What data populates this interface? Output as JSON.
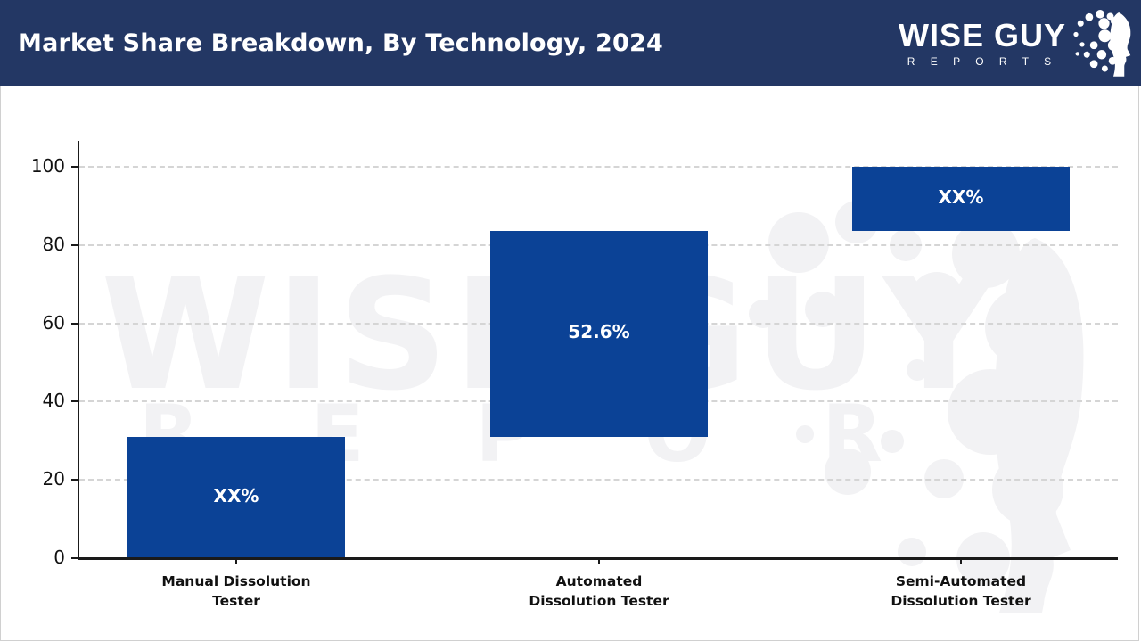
{
  "header": {
    "title": "Market Share Breakdown, By Technology, 2024",
    "logo": {
      "wordmark": "WISE GUY",
      "subtext": "R E P O R T S"
    }
  },
  "watermark": {
    "wordmark": "WISE GUY",
    "subtext": "REPORTS"
  },
  "chart_data": {
    "type": "bar",
    "subtype": "stacked-waterfall-segments",
    "title": "Market Share Breakdown, By Technology, 2024",
    "categories": [
      "Manual Dissolution\nTester",
      "Automated\nDissolution Tester",
      "Semi-Automated\nDissolution Tester"
    ],
    "segments": [
      {
        "category": "Manual Dissolution Tester",
        "start": 0,
        "end": 31,
        "value_label": "XX%",
        "estimated_value": 31
      },
      {
        "category": "Automated Dissolution Tester",
        "start": 31,
        "end": 83.6,
        "value_label": "52.6%",
        "estimated_value": 52.6
      },
      {
        "category": "Semi-Automated Dissolution Tester",
        "start": 83.6,
        "end": 100,
        "value_label": "XX%",
        "estimated_value": 16.4
      }
    ],
    "ylim": [
      0,
      100
    ],
    "yticks": [
      0,
      20,
      40,
      60,
      80,
      100
    ],
    "xlabel": "",
    "ylabel": "",
    "grid": "horizontal-dashed",
    "legend": "none",
    "bar_color": "#0b4296",
    "bar_label_color": "#ffffff"
  },
  "colors": {
    "header_bg": "#233764",
    "bar": "#0b4296",
    "gridline": "#d5d5d5",
    "axis": "#1a1a1a",
    "watermark": "#f2f2f4",
    "title_text": "#ffffff"
  }
}
